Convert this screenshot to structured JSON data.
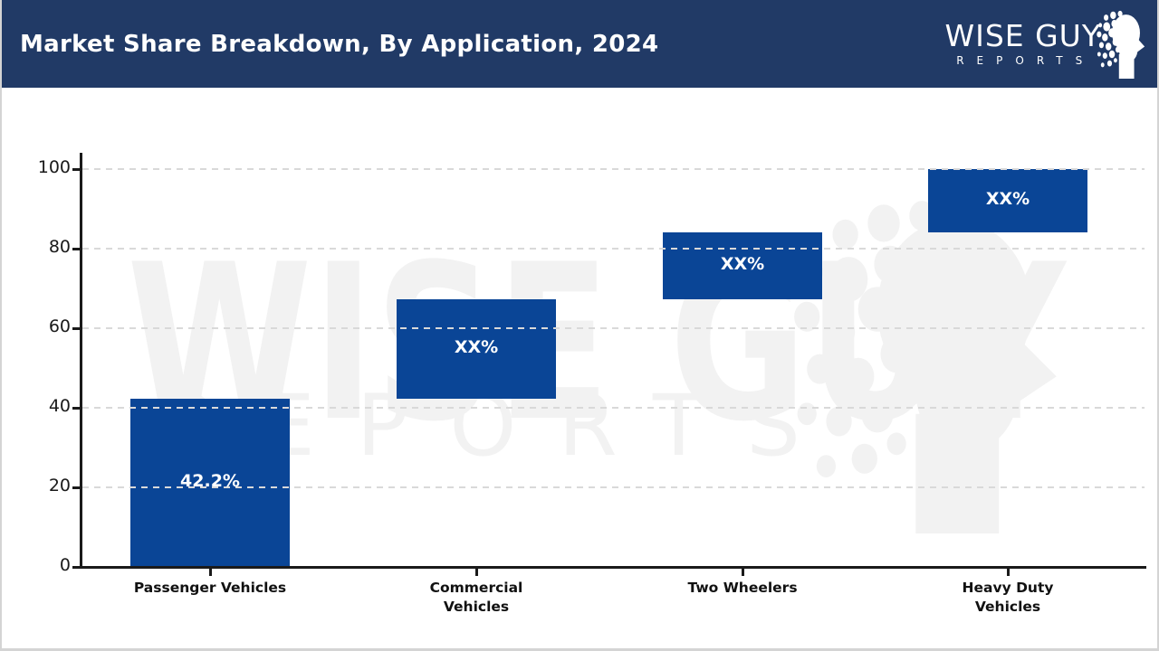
{
  "header": {
    "title": "Market Share Breakdown, By Application, 2024",
    "bg_color": "#213A66",
    "logo": {
      "name": "WISE GUY",
      "sub": "REPORTS"
    }
  },
  "watermark": {
    "line1": "WISE GUY",
    "line2": "REPORTS"
  },
  "chart_data": {
    "type": "bar",
    "subtype": "waterfall",
    "title": "Market Share Breakdown, By Application, 2024",
    "categories": [
      "Passenger Vehicles",
      "Commercial\nVehicles",
      "Two Wheelers",
      "Heavy Duty\nVehicles"
    ],
    "bars": [
      {
        "label": "42.2%",
        "start": 0,
        "end": 42.2
      },
      {
        "label": "XX%",
        "start": 42.2,
        "end": 67.3
      },
      {
        "label": "XX%",
        "start": 67.3,
        "end": 84.1
      },
      {
        "label": "XX%",
        "start": 84.1,
        "end": 100
      }
    ],
    "yticks": [
      0,
      20,
      40,
      60,
      80,
      100
    ],
    "ylim": [
      0,
      104
    ],
    "xlabel": "",
    "ylabel": "",
    "grid": true,
    "legend": null,
    "bar_color": "#0A4596",
    "grid_color": "#d9d9d9",
    "axis_color": "#1a1a1a"
  }
}
